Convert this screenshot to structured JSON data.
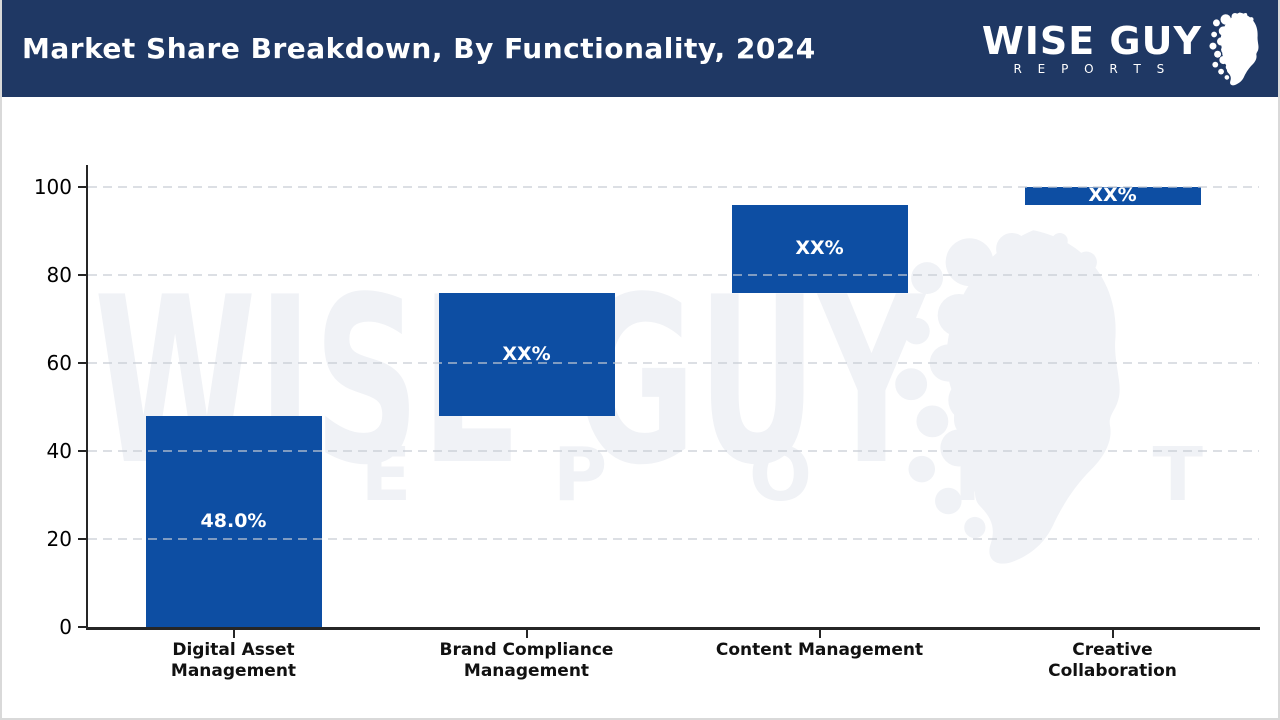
{
  "header": {
    "title": "Market Share Breakdown, By Functionality, 2024",
    "brand_line1": "WISE GUY",
    "brand_line2": "R E P O R T S"
  },
  "watermark": {
    "line1": "WISE GUY",
    "line2": "R E P O R T S"
  },
  "y_axis": {
    "tick_labels": [
      "100",
      "80",
      "60",
      "40",
      "20",
      "0"
    ]
  },
  "x_axis": {
    "labels": [
      "Digital Asset\nManagement",
      "Brand Compliance\nManagement",
      "Content Management",
      "Creative\nCollaboration"
    ]
  },
  "chart_data": {
    "type": "bar",
    "variant": "waterfall",
    "title": "Market Share Breakdown, By Functionality, 2024",
    "categories": [
      "Digital Asset Management",
      "Brand Compliance Management",
      "Content Management",
      "Creative Collaboration"
    ],
    "bars": [
      {
        "category": "Digital Asset Management",
        "label": "48.0%",
        "start": 0,
        "end": 48,
        "segment_value": 48,
        "masked": false
      },
      {
        "category": "Brand Compliance Management",
        "label": "XX%",
        "start": 48,
        "end": 76,
        "segment_value": 28,
        "masked": true
      },
      {
        "category": "Content Management",
        "label": "XX%",
        "start": 76,
        "end": 96,
        "segment_value": 20,
        "masked": true
      },
      {
        "category": "Creative Collaboration",
        "label": "XX%",
        "start": 96,
        "end": 100,
        "segment_value": 4,
        "masked": true
      }
    ],
    "ylim": [
      0,
      100
    ],
    "yticks": [
      0,
      20,
      40,
      60,
      80,
      100
    ],
    "grid": "horizontal-dashed",
    "legend": "none",
    "bar_color": "#0d4ea3",
    "bar_label_color": "#ffffff"
  },
  "colors": {
    "header_bg": "#1f3864",
    "bar": "#0d4ea3",
    "axis": "#262626",
    "gridline": "#d9d9d9",
    "watermark": "#f0f2f6"
  }
}
